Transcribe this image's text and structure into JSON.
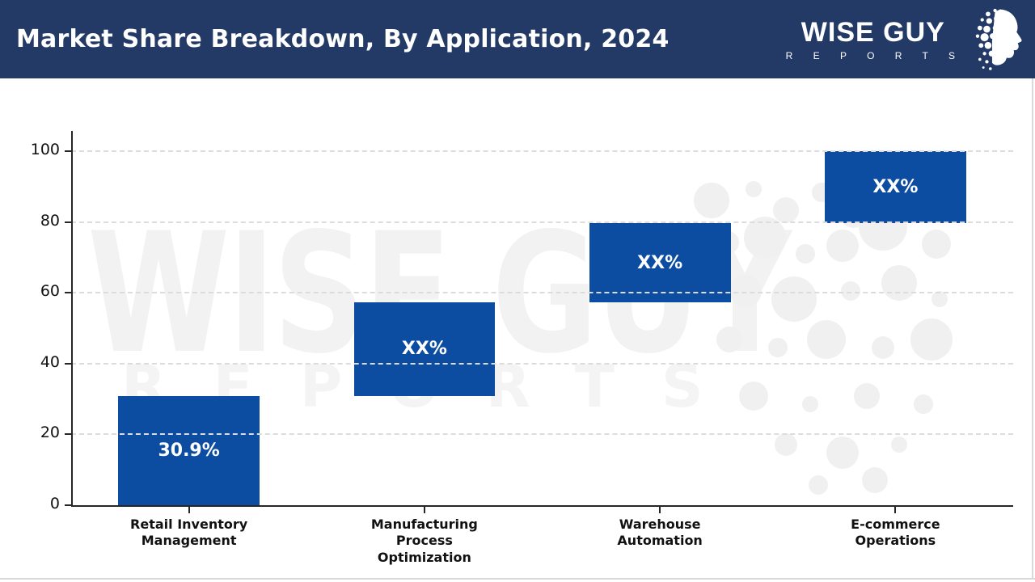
{
  "header": {
    "title": "Market Share Breakdown, By Application, 2024",
    "logo": {
      "name": "WISE GUY",
      "subtitle": "R E P O R T S"
    }
  },
  "watermark": {
    "line1": "WISE GUY",
    "line2": "REPORTS"
  },
  "chart_data": {
    "type": "bar",
    "subtype": "floating-segment-waterfall",
    "title": "Market Share Breakdown, By Application, 2024",
    "categories": [
      "Retail Inventory\nManagement",
      "Manufacturing\nProcess\nOptimization",
      "Warehouse\nAutomation",
      "E-commerce\nOperations"
    ],
    "bars": [
      {
        "category": "Retail Inventory Management",
        "start": 0,
        "end": 30.9,
        "value": 30.9,
        "label": "30.9%"
      },
      {
        "category": "Manufacturing Process Optimization",
        "start": 30.9,
        "end": 57.3,
        "value": 26.4,
        "label": "XX%"
      },
      {
        "category": "Warehouse Automation",
        "start": 57.3,
        "end": 79.6,
        "value": 22.3,
        "label": "XX%"
      },
      {
        "category": "E-commerce Operations",
        "start": 79.6,
        "end": 100,
        "value": 20.4,
        "label": "XX%"
      }
    ],
    "yticks": [
      0,
      20,
      40,
      60,
      80,
      100
    ],
    "ylim": [
      0,
      105
    ],
    "xlabel": "",
    "ylabel": "",
    "grid": {
      "axis": "y",
      "style": "dashed",
      "color": "#DCDCDC"
    },
    "legend": null,
    "bar_color": "#0C4DA2",
    "bar_label_color": "#FFFFFF"
  },
  "colors": {
    "header_bg": "#233A66",
    "bar": "#0C4DA2",
    "grid": "#DCDCDC",
    "axis": "#262626",
    "watermark": "#F1F1F2"
  }
}
